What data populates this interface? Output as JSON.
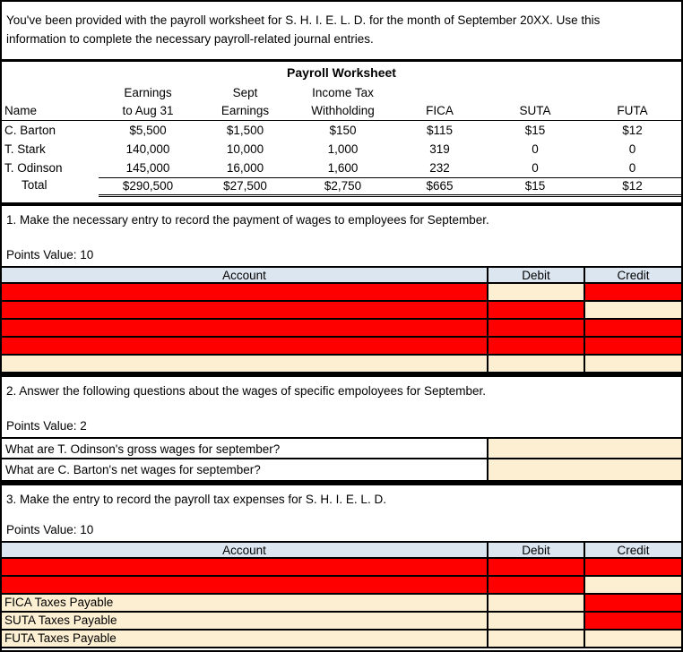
{
  "colors": {
    "red": "#ff0000",
    "cream": "#fdefd2",
    "header_blue": "#dce6f1",
    "border": "#000000",
    "background": "#ffffff"
  },
  "instructions": "You've been provided with the payroll worksheet for S. H. I. E. L. D. for the month of September 20XX. Use this information to complete the necessary payroll-related journal entries.",
  "worksheet": {
    "title": "Payroll Worksheet",
    "headers": [
      {
        "line1": "",
        "line2": "Name"
      },
      {
        "line1": "Earnings",
        "line2": "to Aug 31"
      },
      {
        "line1": "Sept",
        "line2": "Earnings"
      },
      {
        "line1": "Income Tax",
        "line2": "Withholding"
      },
      {
        "line1": "",
        "line2": "FICA"
      },
      {
        "line1": "",
        "line2": "SUTA"
      },
      {
        "line1": "",
        "line2": "FUTA"
      }
    ],
    "rows": [
      {
        "name": "C. Barton",
        "values": [
          "$5,500",
          "$1,500",
          "$150",
          "$115",
          "$15",
          "$12"
        ]
      },
      {
        "name": "T. Stark",
        "values": [
          "140,000",
          "10,000",
          "1,000",
          "319",
          "0",
          "0"
        ]
      },
      {
        "name": "T. Odinson",
        "values": [
          "145,000",
          "16,000",
          "1,600",
          "232",
          "0",
          "0"
        ]
      }
    ],
    "total": {
      "label": "Total",
      "values": [
        "$290,500",
        "$27,500",
        "$2,750",
        "$665",
        "$15",
        "$12"
      ]
    }
  },
  "section1": {
    "heading": "1. Make the necessary entry to record the payment of wages to employees for September.",
    "points": "Points Value: 10",
    "table": {
      "headers": [
        "Account",
        "Debit",
        "Credit"
      ],
      "rows": [
        {
          "account": "",
          "debit": "",
          "credit": "",
          "fills": [
            "red",
            "cream",
            "red"
          ]
        },
        {
          "account": "",
          "debit": "",
          "credit": "",
          "fills": [
            "red",
            "red",
            "cream"
          ]
        },
        {
          "account": "",
          "debit": "",
          "credit": "",
          "fills": [
            "red",
            "red",
            "red"
          ]
        },
        {
          "account": "",
          "debit": "",
          "credit": "",
          "fills": [
            "red",
            "red",
            "red"
          ]
        },
        {
          "account": "",
          "debit": "",
          "credit": "",
          "fills": [
            "cream",
            "cream",
            "cream"
          ]
        }
      ]
    }
  },
  "section2": {
    "heading": "2. Answer the following questions about the wages of specific empoloyees for September.",
    "points": "Points Value: 2",
    "questions": [
      {
        "text": "What are T. Odinson's gross wages for september?",
        "answer": ""
      },
      {
        "text": "What are C. Barton's net wages for september?",
        "answer": ""
      }
    ]
  },
  "section3": {
    "heading": "3. Make the entry to record the payroll tax expenses for S. H. I. E. L. D.",
    "points": "Points Value: 10",
    "table": {
      "headers": [
        "Account",
        "Debit",
        "Credit"
      ],
      "rows": [
        {
          "account": "",
          "debit": "",
          "credit": "",
          "fills": [
            "red",
            "red",
            "red"
          ]
        },
        {
          "account": "",
          "debit": "",
          "credit": "",
          "fills": [
            "red",
            "red",
            "cream"
          ]
        },
        {
          "account": "FICA Taxes Payable",
          "debit": "",
          "credit": "",
          "fills": [
            "cream",
            "cream",
            "red"
          ]
        },
        {
          "account": "SUTA Taxes Payable",
          "debit": "",
          "credit": "",
          "fills": [
            "cream",
            "cream",
            "red"
          ]
        },
        {
          "account": "FUTA Taxes Payable",
          "debit": "",
          "credit": "",
          "fills": [
            "cream",
            "cream",
            "cream"
          ]
        }
      ]
    }
  }
}
